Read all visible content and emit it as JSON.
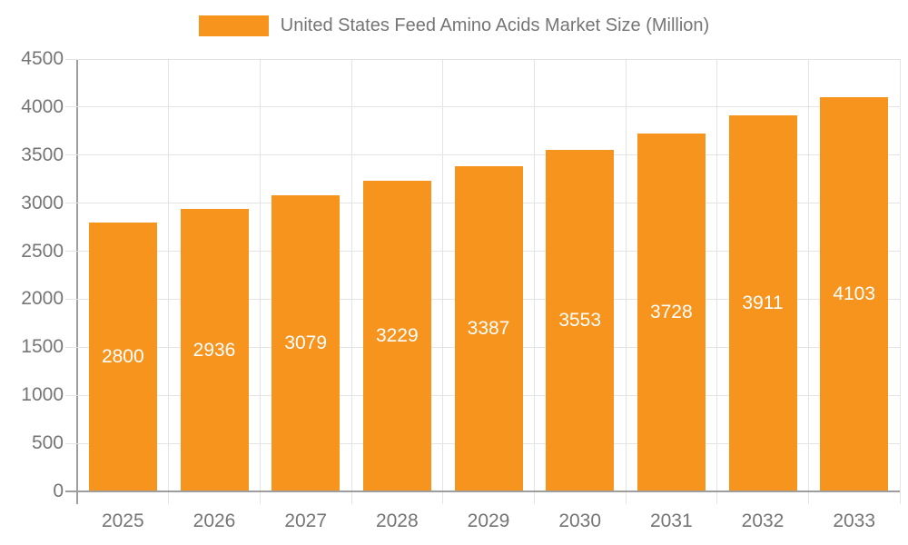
{
  "legend": {
    "position": "top",
    "label": "United States Feed Amino Acids Market Size (Million)"
  },
  "chart_data": {
    "type": "bar",
    "title": "United States Feed Amino Acids Market Size (Million)",
    "series_name": "United States Feed Amino Acids Market Size (Million)",
    "categories": [
      "2025",
      "2026",
      "2027",
      "2028",
      "2029",
      "2030",
      "2031",
      "2032",
      "2033"
    ],
    "values": [
      2800,
      2936,
      3079,
      3229,
      3387,
      3553,
      3728,
      3911,
      4103
    ],
    "xlabel": "",
    "ylabel": "",
    "ylim": [
      0,
      4500
    ],
    "yticks": [
      0,
      500,
      1000,
      1500,
      2000,
      2500,
      3000,
      3500,
      4000,
      4500
    ],
    "grid": true,
    "legend_position": "top",
    "value_label_position": "inside-middle",
    "colors": {
      "bar": "#F7941E",
      "value_label": "#FFFFFF",
      "axis": "#9E9E9E",
      "gridline": "#E4E4E4",
      "tick_label": "#757575",
      "legend_text": "#757575",
      "background": "#FFFFFF"
    }
  }
}
